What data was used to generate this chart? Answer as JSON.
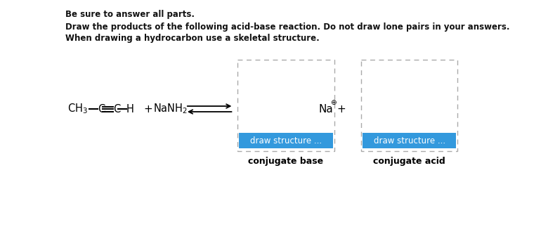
{
  "bg_color": "#ffffff",
  "title_line1": "Be sure to answer all parts.",
  "title_line2": "Draw the products of the following acid-base reaction. Do not draw lone pairs in your answers.",
  "title_line3": "When drawing a hydrocarbon use a skeletal structure.",
  "plus1": "+",
  "reagent": "NaNH$_2$",
  "na_label": "Na",
  "plus2": "+",
  "box1_label": "draw structure ...",
  "box1_caption": "conjugate base",
  "box2_label": "draw structure ...",
  "box2_caption": "conjugate acid",
  "box_color": "#3399dd",
  "box_text_color": "#ffffff",
  "caption_color": "#000000",
  "dashed_box_color": "#aaaaaa",
  "font_color": "#111111",
  "arrow_color": "#000000",
  "figw": 7.8,
  "figh": 3.5,
  "dpi": 100
}
